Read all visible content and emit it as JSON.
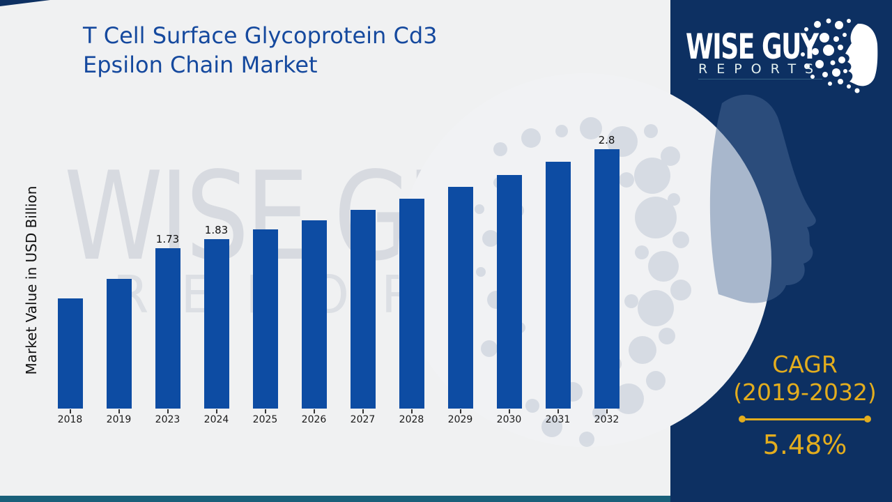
{
  "title": {
    "line1": "T Cell Surface Glycoprotein Cd3",
    "line2": "Epsilon Chain Market"
  },
  "watermark": {
    "line1": "WISE GUY",
    "line2": "REPORTS"
  },
  "logo": {
    "line1": "WISE GUY",
    "line2": "REPORTS"
  },
  "cagr": {
    "label": "CAGR",
    "range": "(2019-2032)",
    "value": "5.48%"
  },
  "colors": {
    "background": "#f0f1f2",
    "bar_blue": "#0d4ca3",
    "title_blue": "#15499e",
    "navy_panel": "#0d3062",
    "gold": "#e3ad1e",
    "teal_strip": "#19607a",
    "watermark_gray": "#d7dae0"
  },
  "chart_data": {
    "type": "bar",
    "title": "T Cell Surface Glycoprotein Cd3 Epsilon Chain Market",
    "xlabel": "",
    "ylabel": "Market Value in USD Billion",
    "categories": [
      "2018",
      "2019",
      "2023",
      "2024",
      "2025",
      "2026",
      "2027",
      "2028",
      "2029",
      "2030",
      "2031",
      "2032"
    ],
    "values": [
      1.19,
      1.4,
      1.73,
      1.83,
      1.93,
      2.03,
      2.14,
      2.26,
      2.39,
      2.52,
      2.66,
      2.8
    ],
    "bar_labels": [
      "",
      "",
      "1.73",
      "1.83",
      "",
      "",
      "",
      "",
      "",
      "",
      "",
      "2.8"
    ],
    "ylim": [
      0,
      2.95
    ],
    "grid": false,
    "legend_position": "none",
    "bar_color": "#0d4ca3"
  }
}
